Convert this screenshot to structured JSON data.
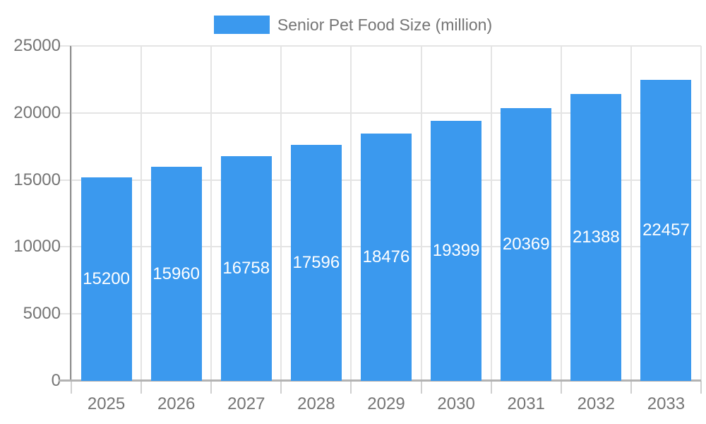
{
  "legend": {
    "label": "Senior Pet Food Size (million)"
  },
  "chart_data": {
    "type": "bar",
    "title": "",
    "series_name": "Senior Pet Food Size (million)",
    "categories": [
      "2025",
      "2026",
      "2027",
      "2028",
      "2029",
      "2030",
      "2031",
      "2032",
      "2033"
    ],
    "values": [
      15200,
      15960,
      16758,
      17596,
      18476,
      19399,
      20369,
      21388,
      22457
    ],
    "xlabel": "",
    "ylabel": "",
    "ylim": [
      0,
      25000
    ],
    "yticks": [
      0,
      5000,
      10000,
      15000,
      20000,
      25000
    ],
    "grid": true,
    "bar_labels_inside": true,
    "legend_position": "top-center",
    "colors": {
      "bar": "#3b99ee",
      "bar_label_text": "#ffffff",
      "axis_text": "#757575",
      "grid_line": "#e4e4e4",
      "tick_line": "#cfcfcf",
      "x_axis_line": "#b3b3b3",
      "y_axis_line": "#8f8f8f",
      "background": "#ffffff"
    }
  }
}
